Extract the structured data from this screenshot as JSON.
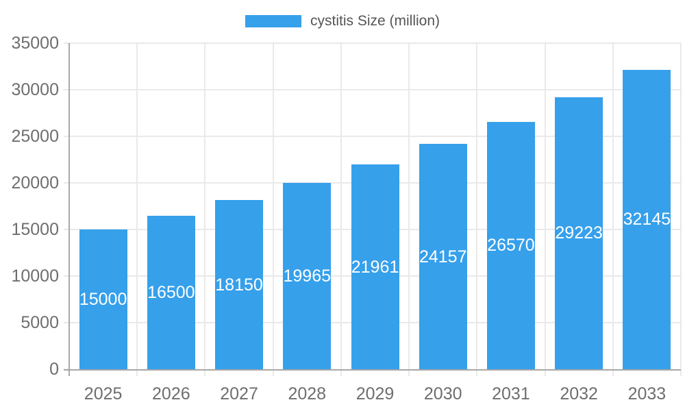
{
  "legend": {
    "label": "cystitis Size (million)"
  },
  "colors": {
    "bar": "#36A0EB",
    "grid": "#e9e9e9",
    "axis": "#a8a8a8",
    "tick_text": "#6e6e6e",
    "legend_text": "#555555",
    "value_label_text": "#ffffff",
    "background": "#ffffff"
  },
  "chart_data": {
    "type": "bar",
    "title": "",
    "xlabel": "",
    "ylabel": "",
    "categories": [
      "2025",
      "2026",
      "2027",
      "2028",
      "2029",
      "2030",
      "2031",
      "2032",
      "2033"
    ],
    "series": [
      {
        "name": "cystitis Size (million)",
        "values": [
          15000,
          16500,
          18150,
          19965,
          21961,
          24157,
          26570,
          29223,
          32145
        ]
      }
    ],
    "ylim": [
      0,
      35000
    ],
    "ytick_step": 5000,
    "ytick_labels": [
      "0",
      "5000",
      "10000",
      "15000",
      "20000",
      "25000",
      "30000",
      "35000"
    ],
    "grid": true,
    "legend_position": "top",
    "value_labels_position": "inside-center"
  }
}
